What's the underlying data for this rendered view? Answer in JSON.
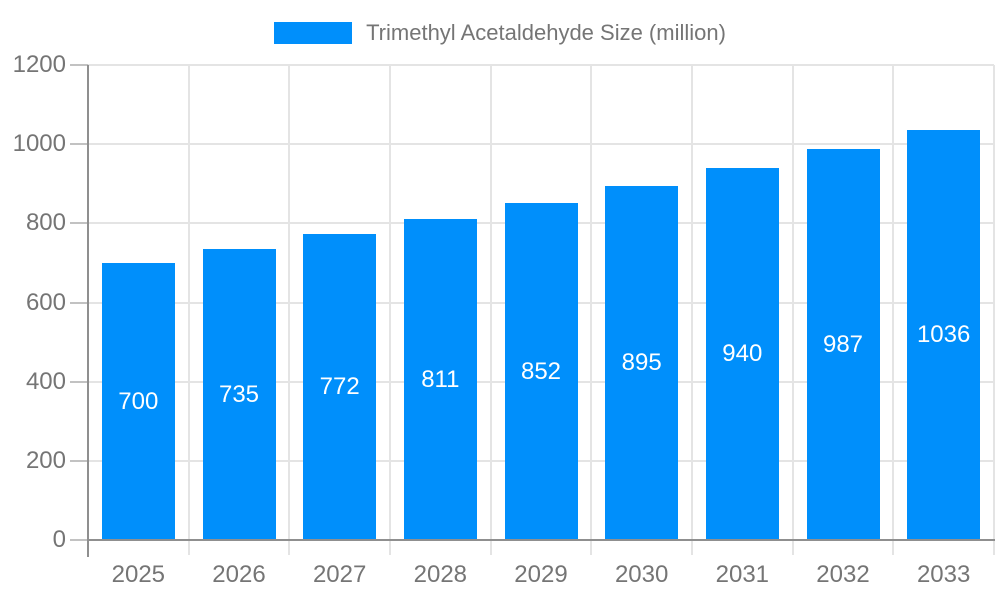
{
  "chart_data": {
    "type": "bar",
    "title": "Trimethyl Acetaldehyde Size (million)",
    "legend_position": "top",
    "legend": [
      {
        "label": "Trimethyl Acetaldehyde Size (million)",
        "color": "#008ffb"
      }
    ],
    "categories": [
      "2025",
      "2026",
      "2027",
      "2028",
      "2029",
      "2030",
      "2031",
      "2032",
      "2033"
    ],
    "values": [
      700,
      735,
      772,
      811,
      852,
      895,
      940,
      987,
      1036
    ],
    "xlabel": "",
    "ylabel": "",
    "ylim": [
      0,
      1200
    ],
    "yticks": [
      0,
      200,
      400,
      600,
      800,
      1000,
      1200
    ],
    "grid": true,
    "colors": {
      "bar": "#008ffb",
      "bar_label": "#ffffff",
      "axis_text": "#757575",
      "grid_line": "#e4e4e4",
      "axis_line": "#8f8f8f",
      "tick": "#c2c2c2",
      "background": "#ffffff"
    }
  }
}
